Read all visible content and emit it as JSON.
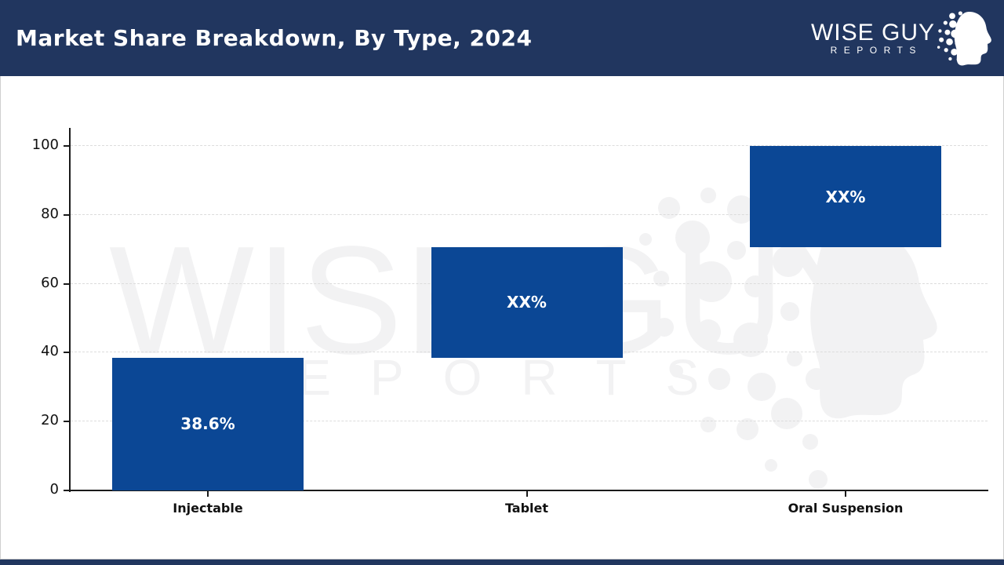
{
  "header": {
    "title": "Market Share Breakdown, By Type, 2024",
    "logo": {
      "line1": "WISE GUY",
      "line2": "REPORTS"
    }
  },
  "watermark": {
    "line1": "WISE GUY",
    "line2": "REPORTS"
  },
  "chart_data": {
    "type": "waterfall",
    "title": "Market Share Breakdown, By Type, 2024",
    "categories": [
      "Injectable",
      "Tablet",
      "Oral Suspension"
    ],
    "segments": [
      {
        "category": "Injectable",
        "start": 0,
        "end": 38.6,
        "label": "38.6%"
      },
      {
        "category": "Tablet",
        "start": 38.6,
        "end": 70.6,
        "label": "XX%"
      },
      {
        "category": "Oral Suspension",
        "start": 70.6,
        "end": 100,
        "label": "XX%"
      }
    ],
    "xlabel": "",
    "ylabel": "",
    "ylim": [
      0,
      100
    ],
    "yticks": [
      0,
      20,
      40,
      60,
      80,
      100
    ],
    "grid": "horizontal-dashed",
    "legend": "none",
    "bar_color": "#0b4795",
    "bar_label_color": "#ffffff"
  },
  "colors": {
    "header_bg": "#21365f",
    "footer_bg": "#21365f",
    "bar": "#0b4795",
    "grid": "#dcdcdc",
    "axis": "#1a1a1a",
    "watermark": "#f2f2f3"
  }
}
